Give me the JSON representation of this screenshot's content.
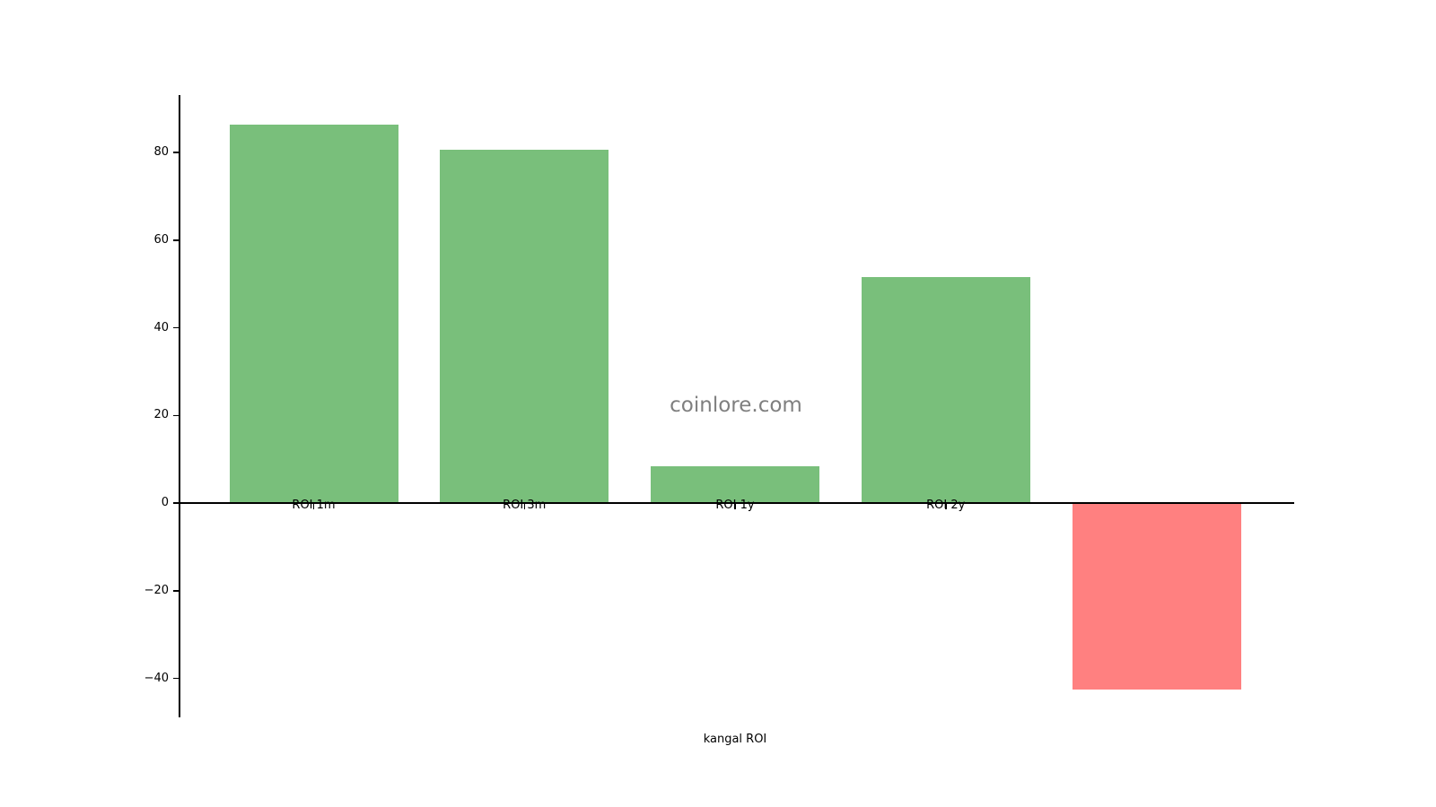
{
  "watermark": "coinlore.com",
  "colors": {
    "positive_bar": "#79bf7b",
    "negative_bar": "#ff8080",
    "axis": "#000000",
    "tick_text": "#000000",
    "watermark_text": "#7f7f7f"
  },
  "chart_data": {
    "type": "bar",
    "title": "",
    "xlabel": "kangal ROI",
    "ylabel": "",
    "categories": [
      "ROI 1m",
      "ROI 3m",
      "ROI 1y",
      "ROI 2y",
      ""
    ],
    "values": [
      86.3,
      80.7,
      8.4,
      51.6,
      -42.4
    ],
    "series": [
      {
        "name": "kangal ROI",
        "values": [
          86.3,
          80.7,
          8.4,
          51.6,
          -42.4
        ]
      }
    ],
    "yticks": [
      80,
      60,
      40,
      20,
      0,
      -20,
      -40
    ],
    "ytick_labels": [
      "80",
      "60",
      "40",
      "20",
      "0",
      "−20",
      "−40"
    ],
    "ylim": [
      -49,
      93
    ],
    "grid": false,
    "legend": "none",
    "bar_color_rule": "green if positive, red if negative"
  }
}
